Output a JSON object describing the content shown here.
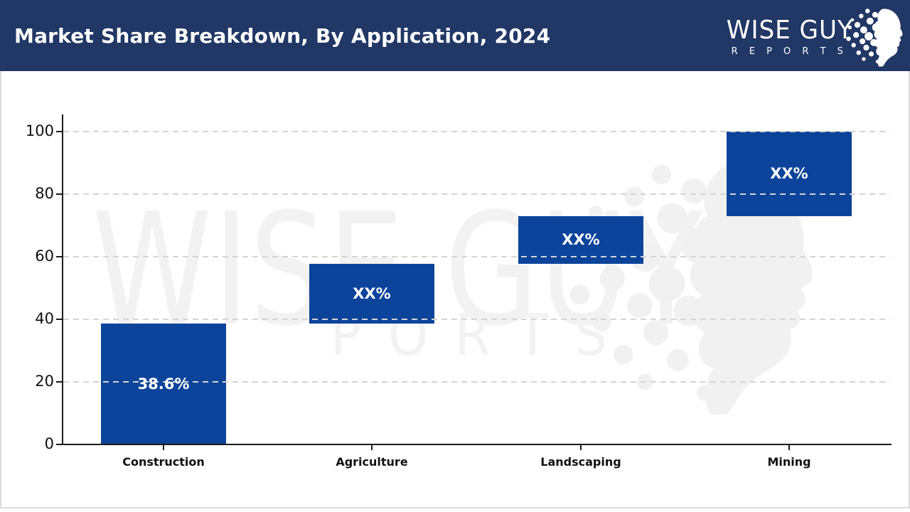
{
  "header": {
    "title": "Market Share Breakdown, By Application, 2024",
    "logo": {
      "line1": "WISE GUY",
      "line2": "R E P O R T S"
    }
  },
  "watermark": {
    "line1": "WISE GUY",
    "line2": "P O R T S"
  },
  "colors": {
    "header_bg": "#213765",
    "bar": "#0d449b",
    "axis": "#1c1c1c",
    "grid": "#d4d4d4",
    "bar_label": "#ffffff",
    "watermark": "#f2f2f2",
    "frame": "#dcdcdc"
  },
  "chart_data": {
    "type": "bar",
    "subtype": "waterfall",
    "title": "Market Share Breakdown, By Application, 2024",
    "categories": [
      "Construction",
      "Agriculture",
      "Landscaping",
      "Mining"
    ],
    "segments": [
      {
        "category": "Construction",
        "start": 0,
        "end": 38.6,
        "label": "38.6%"
      },
      {
        "category": "Agriculture",
        "start": 38.6,
        "end": 57.7,
        "label": "XX%"
      },
      {
        "category": "Landscaping",
        "start": 57.7,
        "end": 73.0,
        "label": "XX%"
      },
      {
        "category": "Mining",
        "start": 73.0,
        "end": 100,
        "label": "XX%"
      }
    ],
    "xlabel": "",
    "ylabel": "",
    "ylim": [
      0,
      100
    ],
    "yticks": [
      0,
      20,
      40,
      60,
      80,
      100
    ],
    "grid": true,
    "grid_style": "dashed",
    "legend": false,
    "bar_color": "#0d449b"
  }
}
